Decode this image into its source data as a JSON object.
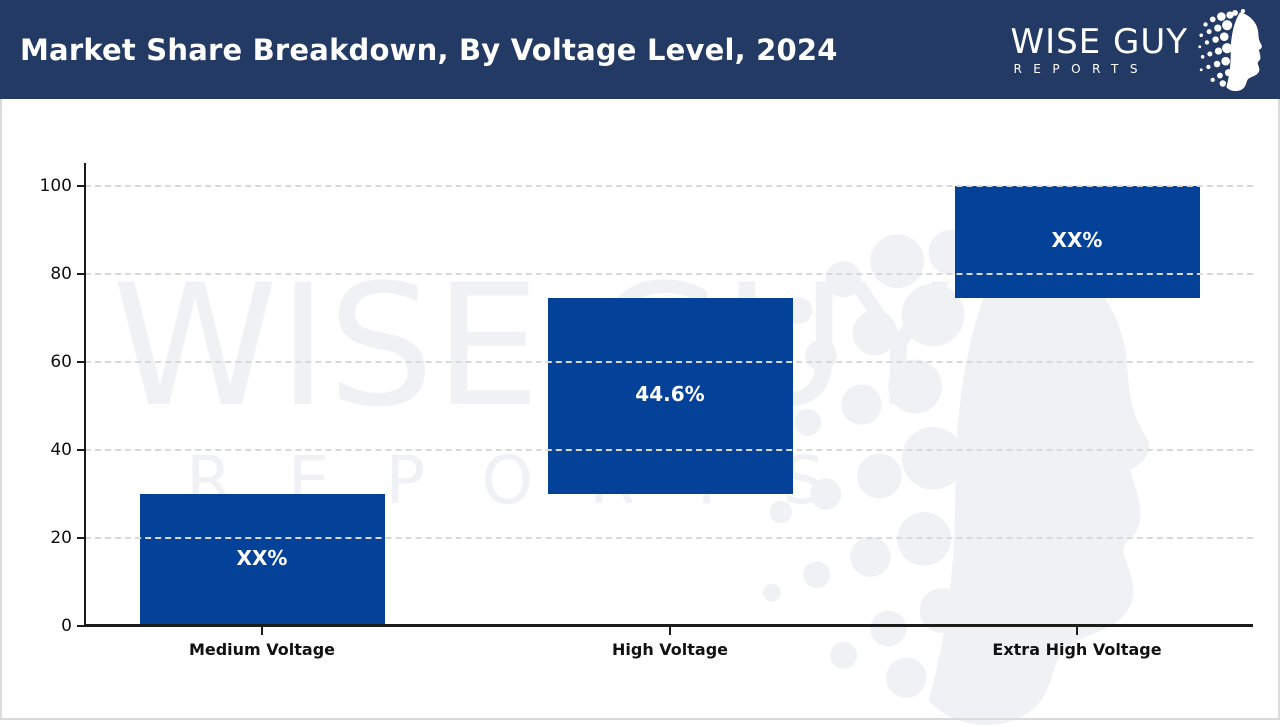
{
  "header": {
    "title": "Market Share Breakdown, By Voltage Level, 2024"
  },
  "logo": {
    "line1": "WISE GUY",
    "line2": "REPORTS"
  },
  "watermark": {
    "line1": "WISE GUY",
    "line2": "REPORTS"
  },
  "colors": {
    "header_bg": "#223a64",
    "bar": "#04429a",
    "grid": "#d9d9d9",
    "axis": "#1c1c1c",
    "watermark": "#f0f1f4",
    "label_on_bar": "#ffffff",
    "text": "#111111"
  },
  "chart_data": {
    "type": "bar",
    "subtype": "floating-waterfall-segments",
    "title": "Market Share Breakdown, By Voltage Level, 2024",
    "categories": [
      "Medium Voltage",
      "High Voltage",
      "Extra High Voltage"
    ],
    "segments": [
      {
        "category": "Medium Voltage",
        "from": 0,
        "to": 30,
        "label": "XX%"
      },
      {
        "category": "High Voltage",
        "from": 30,
        "to": 74.6,
        "label": "44.6%"
      },
      {
        "category": "Extra High Voltage",
        "from": 74.6,
        "to": 100,
        "label": "XX%"
      }
    ],
    "ylim": [
      0,
      100
    ],
    "yticks": [
      0,
      20,
      40,
      60,
      80,
      100
    ],
    "grid": "dashed-horizontal",
    "legend": "none",
    "xlabel": "",
    "ylabel": ""
  }
}
